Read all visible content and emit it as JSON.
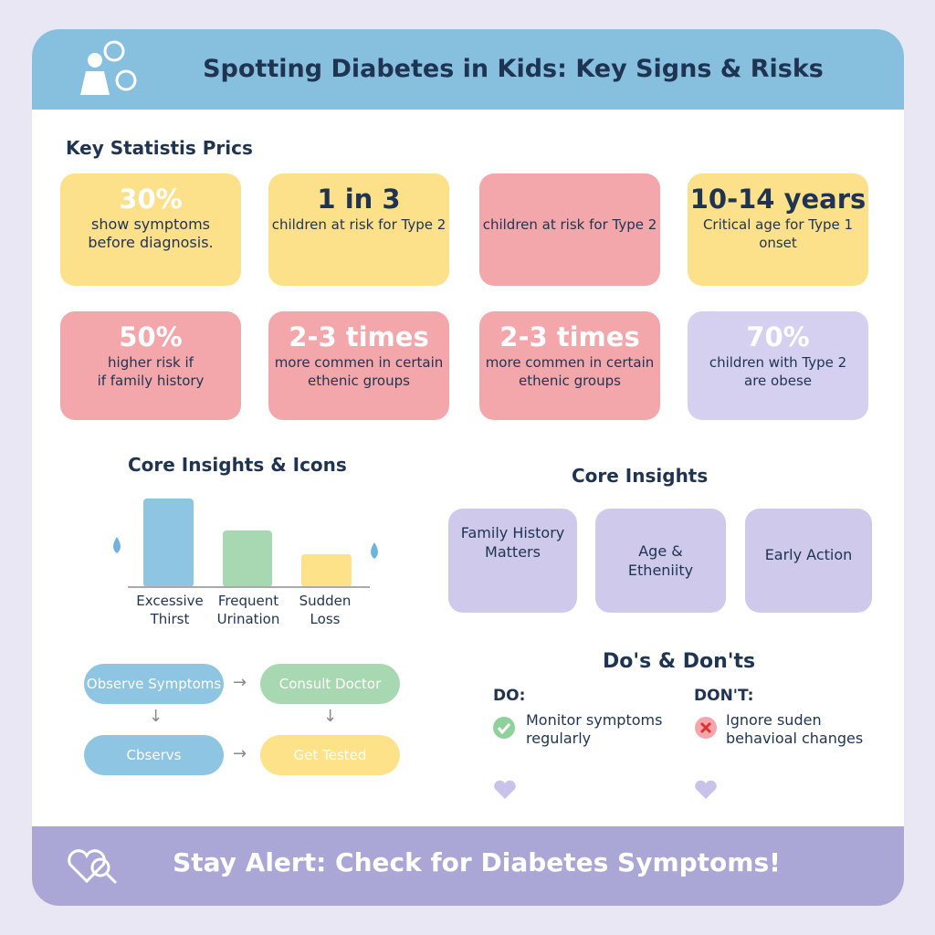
{
  "header": {
    "title": "Spotting Diabetes in Kids: Key Signs & Risks"
  },
  "stats": {
    "title": "Key Statistis Prics",
    "cards": [
      {
        "value": "30%",
        "lines": [
          "show symptoms",
          "before diagnosis."
        ]
      },
      {
        "value": "1 in 3",
        "lines": [
          "children at risk for Type 2"
        ]
      },
      {
        "lines": [
          "children at risk for Type 2"
        ]
      },
      {
        "value": "10-14 years",
        "lines": [
          "Critical age for Type 1 onset"
        ]
      },
      {
        "value": "50%",
        "lines": [
          "higher risk if",
          "if family history"
        ]
      },
      {
        "value": "2-3 times",
        "lines": [
          "more commen in certain",
          "ethenic groups"
        ]
      },
      {
        "value": "2-3 times",
        "lines": [
          "more commen in certain",
          "ethenic groups"
        ]
      },
      {
        "value": "70%",
        "lines": [
          "children with Type 2",
          "are obese"
        ]
      }
    ]
  },
  "symptoms": {
    "title": "Core Insights & Icons",
    "bars": [
      {
        "lines": [
          "Excessive",
          "Thirst"
        ]
      },
      {
        "lines": [
          "Frequent",
          "Urination"
        ]
      },
      {
        "lines": [
          "Sudden",
          "Loss"
        ]
      }
    ]
  },
  "insights": {
    "title": "Core Insights",
    "cards": [
      {
        "lines": [
          "Family History",
          "Matters"
        ]
      },
      {
        "lines": [
          "Age &",
          "Etheniity"
        ]
      },
      {
        "lines": [
          "Early Action"
        ]
      }
    ]
  },
  "flow": {
    "steps": [
      "Observe Symptoms",
      "Consult Doctor",
      "Cbservs",
      "Get Tested"
    ]
  },
  "dos_donts": {
    "title": "Do's & Don'ts",
    "do": {
      "label": "DO:",
      "lines": [
        "Monitor symptoms",
        "regularly"
      ]
    },
    "dont": {
      "label": "DON'T:",
      "lines": [
        "Ignore suden",
        "behavioal changes"
      ]
    }
  },
  "footer": {
    "text": "Stay Alert: Check for Diabetes Symptoms!"
  }
}
